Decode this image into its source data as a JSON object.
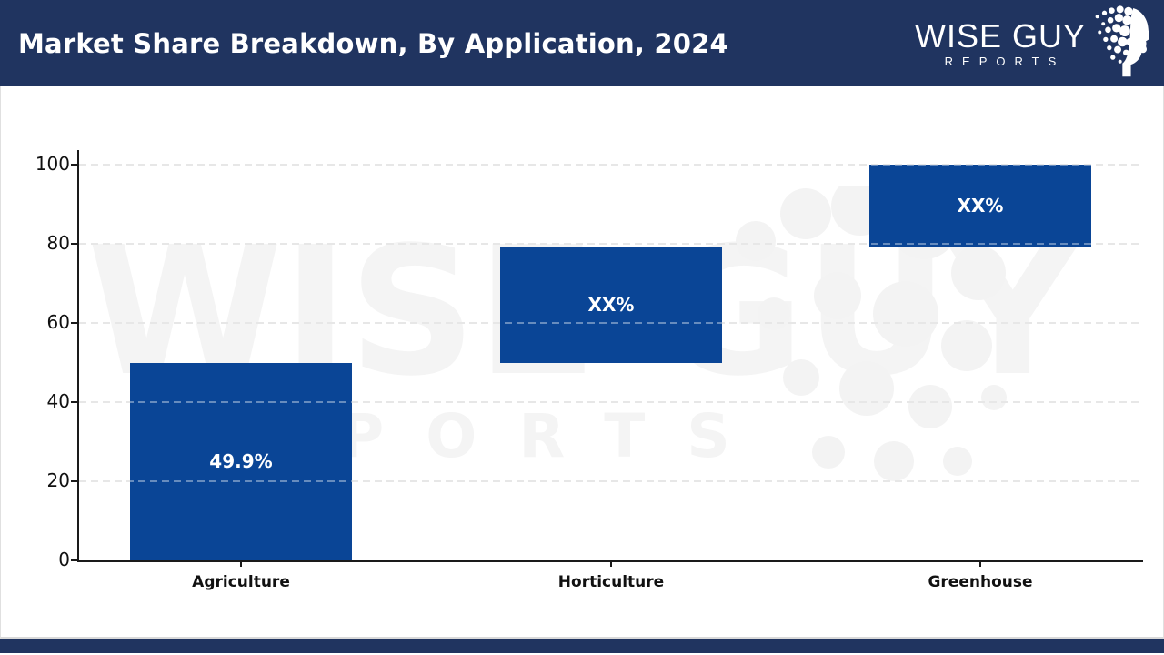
{
  "header": {
    "title": "Market Share Breakdown, By Application, 2024",
    "logo": {
      "line1": "WISE GUY",
      "line2": "REPORTS"
    }
  },
  "watermark": {
    "line1": "WISE GUY",
    "line2": "REPORTS"
  },
  "chart_data": {
    "type": "bar",
    "subtype": "waterfall",
    "title": "Market Share Breakdown, By Application, 2024",
    "xlabel": "",
    "ylabel": "",
    "categories": [
      "Agriculture",
      "Horticulture",
      "Greenhouse"
    ],
    "series": [
      {
        "name": "Market Share",
        "segments": [
          {
            "category": "Agriculture",
            "start": 0,
            "end": 49.9,
            "label": "49.9%"
          },
          {
            "category": "Horticulture",
            "start": 49.9,
            "end": 79.4,
            "label": "XX%"
          },
          {
            "category": "Greenhouse",
            "start": 79.4,
            "end": 100,
            "label": "XX%"
          }
        ]
      }
    ],
    "ylim": [
      0,
      100
    ],
    "yticks": [
      0,
      20,
      40,
      60,
      80,
      100
    ],
    "grid": "horizontal-dashed",
    "legend": "none",
    "bar_color": "#0a4596",
    "bar_label_color": "#ffffff"
  },
  "colors": {
    "header_bg": "#203460",
    "footer_bg": "#203460",
    "bar": "#0a4596",
    "axis": "#1a1a1a",
    "gridline": "#d9d9d9",
    "watermark": "#f4f4f4"
  }
}
